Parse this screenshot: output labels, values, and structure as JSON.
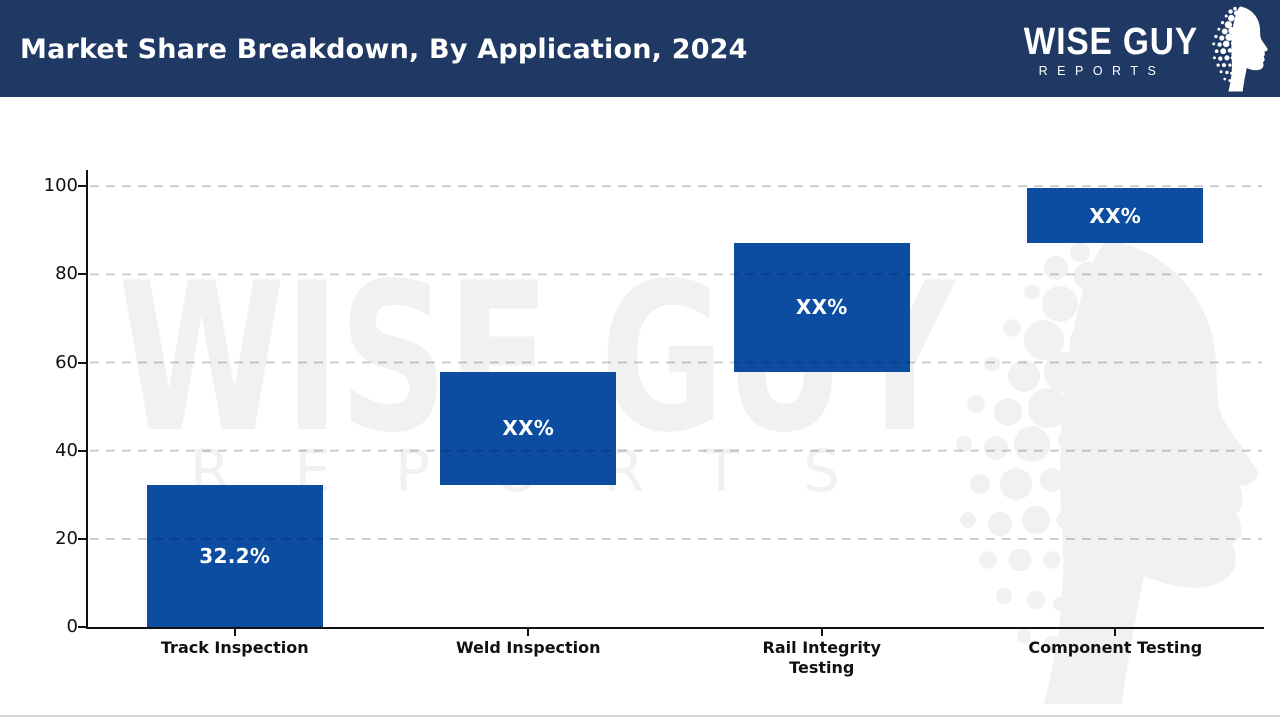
{
  "header": {
    "title": "Market Share Breakdown, By Application, 2024",
    "logo": {
      "wordmark": "WISE GUY",
      "subtext": "REPORTS"
    }
  },
  "watermark": {
    "wordmark": "WISE GUY",
    "subtext": "REPORTS"
  },
  "colors": {
    "header_bg": "#1f3864",
    "bar": "#0d4da1",
    "bar_label": "#ffffff",
    "grid": "#c9c9c9",
    "axis": "#111111",
    "watermark": "#f1f1f3",
    "background": "#ffffff",
    "border_line": "#d8d8d8"
  },
  "chart_data": {
    "type": "bar",
    "subtype": "waterfall",
    "title": "Market Share Breakdown, By Application, 2024",
    "categories": [
      "Track Inspection",
      "Weld Inspection",
      "Rail Integrity Testing",
      "Component Testing"
    ],
    "category_label_lines": [
      [
        "Track Inspection"
      ],
      [
        "Weld Inspection"
      ],
      [
        "Rail Integrity",
        "Testing"
      ],
      [
        "Component Testing"
      ]
    ],
    "series": [
      {
        "name": "Market Share (%)",
        "segments": [
          {
            "category": "Track Inspection",
            "start": 0,
            "end": 32.2,
            "label": "32.2%"
          },
          {
            "category": "Weld Inspection",
            "start": 32.2,
            "end": 57.9,
            "label": "XX%"
          },
          {
            "category": "Rail Integrity Testing",
            "start": 57.9,
            "end": 87.1,
            "label": "XX%"
          },
          {
            "category": "Component Testing",
            "start": 87.1,
            "end": 99.5,
            "label": "XX%"
          }
        ]
      }
    ],
    "xlabel": "",
    "ylabel": "",
    "yticks": [
      0,
      20,
      40,
      60,
      80,
      100
    ],
    "ylim": [
      0,
      104
    ],
    "grid": "dashed-horizontal",
    "legend": "none"
  }
}
